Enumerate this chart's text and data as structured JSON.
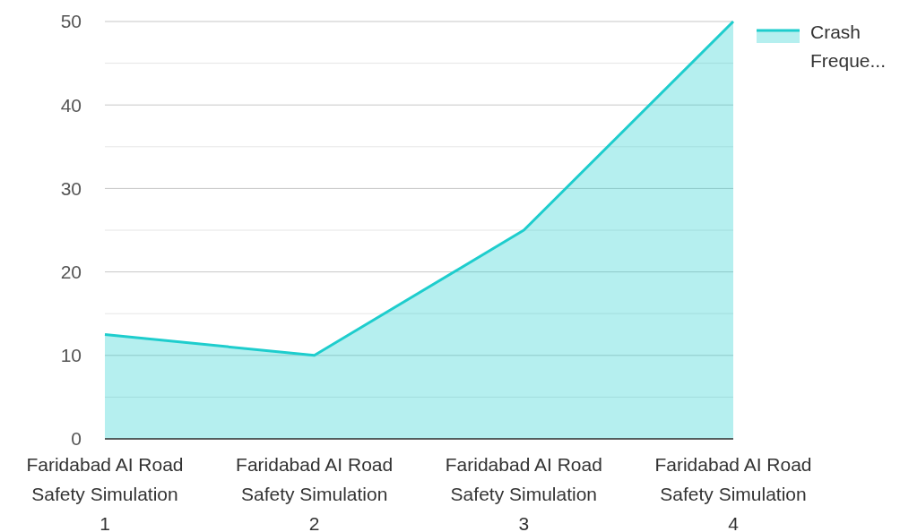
{
  "chart_data": {
    "type": "area",
    "categories": [
      "Faridabad AI Road Safety Simulation 1",
      "Faridabad AI Road Safety Simulation 2",
      "Faridabad AI Road Safety Simulation 3",
      "Faridabad AI Road Safety Simulation 4"
    ],
    "series": [
      {
        "name": "Crash Freque...",
        "color": "#1ecdcd",
        "values": [
          12.5,
          10,
          25,
          50
        ]
      }
    ],
    "ylim": [
      0,
      50
    ],
    "yticks": [
      0,
      {
        "value": 5,
        "label": null
      },
      10,
      {
        "value": 15,
        "label": null
      },
      20,
      {
        "value": 25,
        "label": null
      },
      30,
      {
        "value": 35,
        "label": null
      },
      40,
      {
        "value": 45,
        "label": null
      },
      50
    ],
    "grid": "y",
    "legend": "top right"
  }
}
